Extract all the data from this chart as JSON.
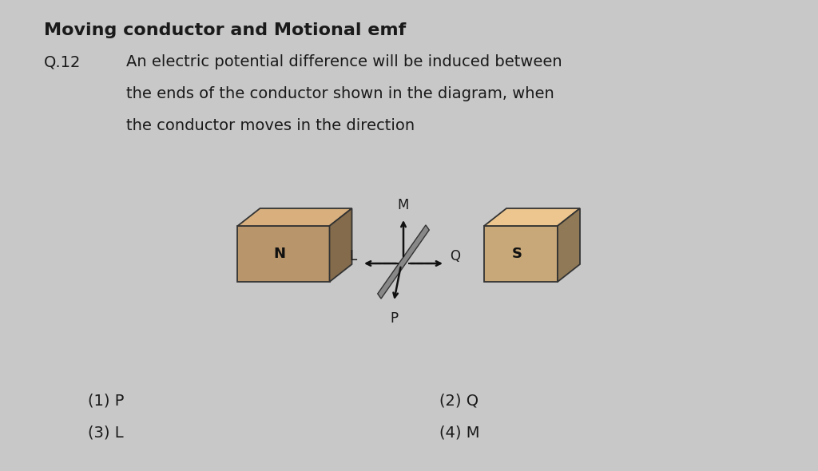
{
  "title": "Moving conductor and Motional emf",
  "question_num": "Q.12",
  "question_text_line1": "An electric potential difference will be induced between",
  "question_text_line2": "the ends of the conductor shown in the diagram, when",
  "question_text_line3": "the conductor moves in the direction",
  "options": [
    "(1) P",
    "(2) Q",
    "(3) L",
    "(4) M"
  ],
  "bg_color": "#c8c8c8",
  "text_color": "#1a1a1a",
  "title_fontsize": 16,
  "body_fontsize": 14,
  "option_fontsize": 14,
  "box_N_color": "#b8956a",
  "box_S_color": "#c8a878",
  "rod_color": "#888888",
  "edge_color": "#333333"
}
